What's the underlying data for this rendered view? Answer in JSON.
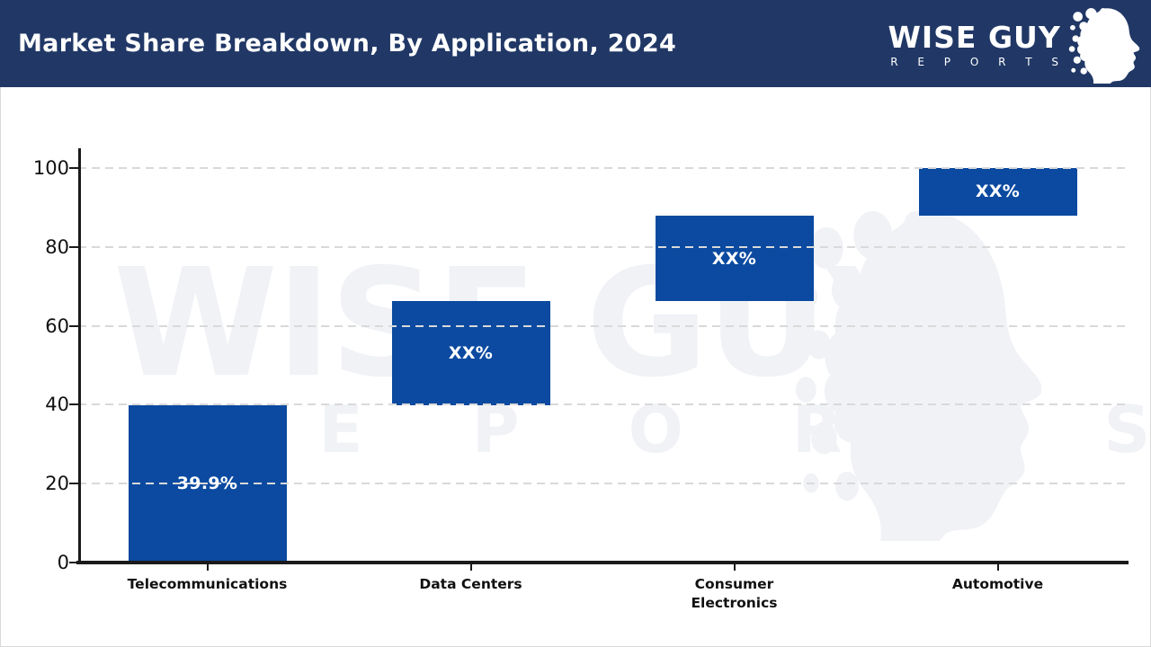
{
  "header": {
    "title": "Market Share Breakdown, By Application, 2024"
  },
  "logo": {
    "line1": "WISE GUY",
    "line2": "R E P O R T S"
  },
  "watermark": {
    "line1": "WISE GUY",
    "line2": "R E P O R T S"
  },
  "colors": {
    "header_bg": "#213866",
    "bar": "#0b4aa0",
    "grid": "#d9d9d9",
    "axis": "#1a1a1a",
    "watermark": "#f1f2f6",
    "value_label": "#ffffff",
    "tick_label": "#111111",
    "page_border": "#d9d9d9"
  },
  "chart_data": {
    "type": "bar",
    "subtype": "waterfall",
    "title": "Market Share Breakdown, By Application, 2024",
    "unit": "percent",
    "categories": [
      "Telecommunications",
      "Data Centers",
      "Consumer\nElectronics",
      "Automotive"
    ],
    "segments": [
      {
        "category": "Telecommunications",
        "start": 0,
        "end": 39.9,
        "label": "39.9%"
      },
      {
        "category": "Data Centers",
        "start": 39.9,
        "end": 66.2,
        "label": "XX%"
      },
      {
        "category": "Consumer Electronics",
        "start": 66.2,
        "end": 88,
        "label": "XX%"
      },
      {
        "category": "Automotive",
        "start": 88,
        "end": 100,
        "label": "XX%"
      }
    ],
    "ylim": [
      0,
      100
    ],
    "yticks": [
      0,
      20,
      40,
      60,
      80,
      100
    ],
    "xlabel": "",
    "ylabel": "",
    "grid": {
      "horizontal": true,
      "style": "dashed",
      "above_bars": true
    },
    "legend": null
  }
}
